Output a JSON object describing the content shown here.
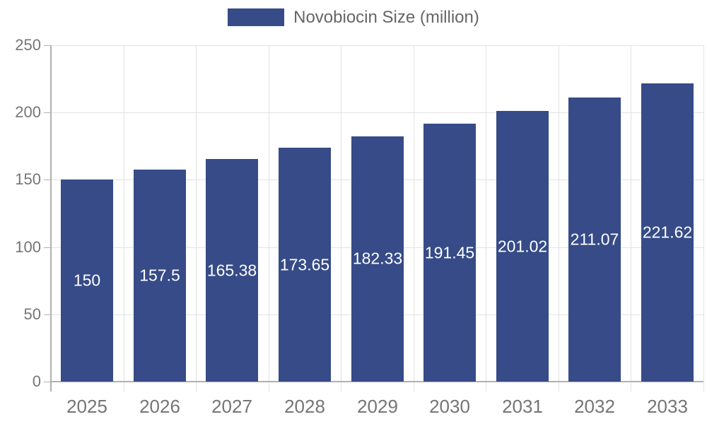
{
  "legend": {
    "label": "Novobiocin Size (million)"
  },
  "colors": {
    "bar": "#364b87",
    "grid": "#e2e2e2",
    "axis": "#b0b0b0",
    "tick_label": "#757575",
    "legend_text": "#666666",
    "value_label": "#ffffff",
    "background": "#ffffff"
  },
  "chart_data": {
    "type": "bar",
    "title": "",
    "xlabel": "",
    "ylabel": "",
    "series_name": "Novobiocin Size (million)",
    "categories": [
      "2025",
      "2026",
      "2027",
      "2028",
      "2029",
      "2030",
      "2031",
      "2032",
      "2033"
    ],
    "values": [
      150,
      157.5,
      165.38,
      173.65,
      182.33,
      191.45,
      201.02,
      211.07,
      221.62
    ],
    "value_label_texts": [
      "150",
      "157.5",
      "165.38",
      "173.65",
      "182.33",
      "191.45",
      "201.02",
      "211.07",
      "221.62"
    ],
    "ylim": [
      0,
      250
    ],
    "yticks": [
      0,
      50,
      100,
      150,
      200,
      250
    ],
    "ytick_labels": [
      "0",
      "50",
      "100",
      "150",
      "200",
      "250"
    ],
    "grid": true,
    "legend_position": "top-center",
    "value_label_position": "inside-center"
  }
}
